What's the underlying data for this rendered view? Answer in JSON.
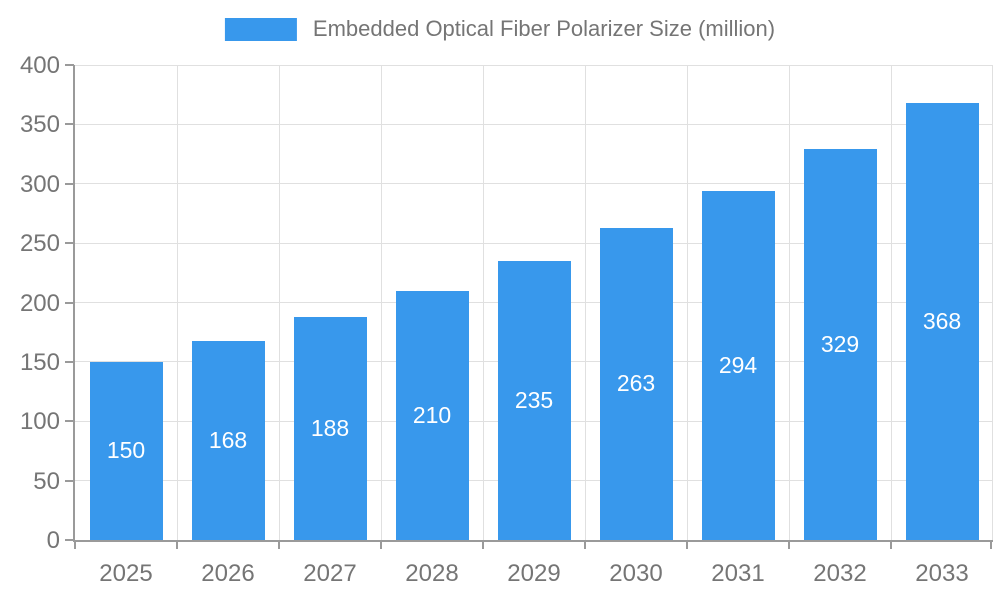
{
  "chart_data": {
    "type": "bar",
    "title": "Embedded Optical Fiber Polarizer Size (million)",
    "series_label": "Embedded Optical Fiber Polarizer Size (million)",
    "categories": [
      "2025",
      "2026",
      "2027",
      "2028",
      "2029",
      "2030",
      "2031",
      "2032",
      "2033"
    ],
    "values": [
      150,
      168,
      188,
      210,
      235,
      263,
      294,
      329,
      368
    ],
    "xlabel": "",
    "ylabel": "",
    "ylim": [
      0,
      400
    ],
    "ytick_step": 50,
    "grid": true,
    "legend_position": "top",
    "colors": {
      "bar": "#3898ec",
      "grid": "#e0e0e0",
      "axis": "#9a9a9a",
      "tick_text": "#757575",
      "value_label": "#ffffff",
      "background": "#ffffff"
    }
  }
}
